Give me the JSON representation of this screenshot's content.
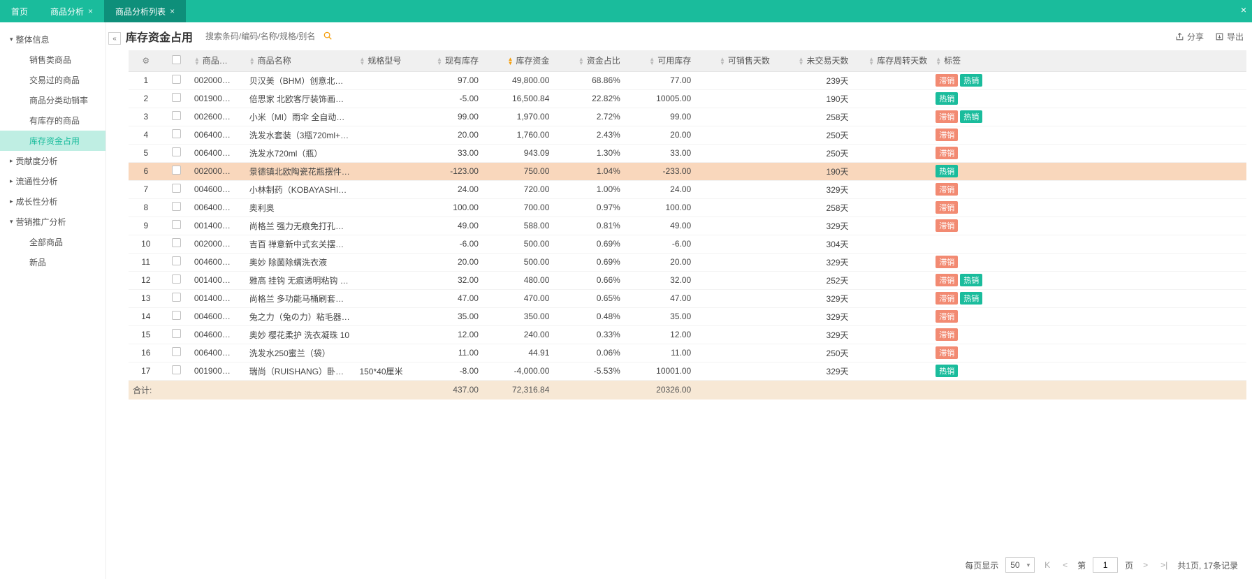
{
  "topbar": {
    "tabs": [
      {
        "label": "首页",
        "closable": false,
        "active": false
      },
      {
        "label": "商品分析",
        "closable": true,
        "active": false
      },
      {
        "label": "商品分析列表",
        "closable": true,
        "active": true
      }
    ]
  },
  "sidebar": {
    "groups": [
      {
        "label": "整体信息",
        "expanded": true,
        "items": [
          {
            "label": "销售类商品"
          },
          {
            "label": "交易过的商品"
          },
          {
            "label": "商品分类动销率"
          },
          {
            "label": "有库存的商品"
          },
          {
            "label": "库存资金占用",
            "active": true
          }
        ]
      },
      {
        "label": "贡献度分析",
        "expanded": false,
        "items": []
      },
      {
        "label": "流通性分析",
        "expanded": false,
        "items": []
      },
      {
        "label": "成长性分析",
        "expanded": false,
        "items": []
      },
      {
        "label": "营销推广分析",
        "expanded": true,
        "items": [
          {
            "label": "全部商品"
          },
          {
            "label": "新品"
          }
        ]
      }
    ]
  },
  "header": {
    "title": "库存资金占用",
    "search_placeholder": "搜索条码/编码/名称/规格/别名",
    "share_label": "分享",
    "export_label": "导出"
  },
  "table": {
    "columns": {
      "code": "商品…",
      "name": "商品名称",
      "spec": "规格型号",
      "stock": "现有库存",
      "fund": "库存资金",
      "pct": "资金占比",
      "avail": "可用库存",
      "saledays": "可销售天数",
      "notxdays": "未交易天数",
      "turndays": "库存周转天数",
      "tags": "标签"
    },
    "tag_labels": {
      "slow": "滞销",
      "hot": "热销"
    },
    "rows": [
      {
        "idx": "1",
        "code": "002000…",
        "name": "贝汉美（BHM）创意北欧…",
        "spec": "",
        "stock": "97.00",
        "fund": "49,800.00",
        "pct": "68.86%",
        "avail": "77.00",
        "saledays": "",
        "notxdays": "239天",
        "turndays": "",
        "tags": [
          "slow",
          "hot"
        ]
      },
      {
        "idx": "2",
        "code": "001900…",
        "name": "倍思家 北欧客厅装饰画卧室",
        "spec": "",
        "stock": "-5.00",
        "fund": "16,500.84",
        "pct": "22.82%",
        "avail": "10005.00",
        "saledays": "",
        "notxdays": "190天",
        "turndays": "",
        "tags": [
          "hot"
        ]
      },
      {
        "idx": "3",
        "code": "002600…",
        "name": "小米（MI）雨伞 全自动折…",
        "spec": "",
        "stock": "99.00",
        "fund": "1,970.00",
        "pct": "2.72%",
        "avail": "99.00",
        "saledays": "",
        "notxdays": "258天",
        "turndays": "",
        "tags": [
          "slow",
          "hot"
        ]
      },
      {
        "idx": "4",
        "code": "006400…",
        "name": "洗发水套装（3瓶720ml+1…",
        "spec": "",
        "stock": "20.00",
        "fund": "1,760.00",
        "pct": "2.43%",
        "avail": "20.00",
        "saledays": "",
        "notxdays": "250天",
        "turndays": "",
        "tags": [
          "slow"
        ]
      },
      {
        "idx": "5",
        "code": "006400…",
        "name": "洗发水720ml（瓶）",
        "spec": "",
        "stock": "33.00",
        "fund": "943.09",
        "pct": "1.30%",
        "avail": "33.00",
        "saledays": "",
        "notxdays": "250天",
        "turndays": "",
        "tags": [
          "slow"
        ]
      },
      {
        "idx": "6",
        "code": "002000…",
        "name": "景德镇北欧陶瓷花瓶摆件 仿…",
        "spec": "",
        "stock": "-123.00",
        "fund": "750.00",
        "pct": "1.04%",
        "avail": "-233.00",
        "saledays": "",
        "notxdays": "190天",
        "turndays": "",
        "tags": [
          "hot"
        ],
        "highlight": true
      },
      {
        "idx": "7",
        "code": "004600…",
        "name": "小林制药（KOBAYASHI）日",
        "spec": "",
        "stock": "24.00",
        "fund": "720.00",
        "pct": "1.00%",
        "avail": "24.00",
        "saledays": "",
        "notxdays": "329天",
        "turndays": "",
        "tags": [
          "slow"
        ]
      },
      {
        "idx": "8",
        "code": "006400…",
        "name": "奥利奥",
        "spec": "",
        "stock": "100.00",
        "fund": "700.00",
        "pct": "0.97%",
        "avail": "100.00",
        "saledays": "",
        "notxdays": "258天",
        "turndays": "",
        "tags": [
          "slow"
        ]
      },
      {
        "idx": "9",
        "code": "001400…",
        "name": "尚格兰 强力无痕免打孔浴室",
        "spec": "",
        "stock": "49.00",
        "fund": "588.00",
        "pct": "0.81%",
        "avail": "49.00",
        "saledays": "",
        "notxdays": "329天",
        "turndays": "",
        "tags": [
          "slow"
        ]
      },
      {
        "idx": "10",
        "code": "002000…",
        "name": "吉百 禅意新中式玄关摆件客",
        "spec": "",
        "stock": "-6.00",
        "fund": "500.00",
        "pct": "0.69%",
        "avail": "-6.00",
        "saledays": "",
        "notxdays": "304天",
        "turndays": "",
        "tags": []
      },
      {
        "idx": "11",
        "code": "004600…",
        "name": "奥妙 除菌除螨洗衣液",
        "spec": "",
        "stock": "20.00",
        "fund": "500.00",
        "pct": "0.69%",
        "avail": "20.00",
        "saledays": "",
        "notxdays": "329天",
        "turndays": "",
        "tags": [
          "slow"
        ]
      },
      {
        "idx": "12",
        "code": "001400…",
        "name": "雅高 挂钩 无痕透明粘钩 强…",
        "spec": "",
        "stock": "32.00",
        "fund": "480.00",
        "pct": "0.66%",
        "avail": "32.00",
        "saledays": "",
        "notxdays": "252天",
        "turndays": "",
        "tags": [
          "slow",
          "hot"
        ]
      },
      {
        "idx": "13",
        "code": "001400…",
        "name": "尚格兰 多功能马桶刷套装 带",
        "spec": "",
        "stock": "47.00",
        "fund": "470.00",
        "pct": "0.65%",
        "avail": "47.00",
        "saledays": "",
        "notxdays": "329天",
        "turndays": "",
        "tags": [
          "slow",
          "hot"
        ]
      },
      {
        "idx": "14",
        "code": "004600…",
        "name": "兔之力（兔の力）粘毛器粘…",
        "spec": "",
        "stock": "35.00",
        "fund": "350.00",
        "pct": "0.48%",
        "avail": "35.00",
        "saledays": "",
        "notxdays": "329天",
        "turndays": "",
        "tags": [
          "slow"
        ]
      },
      {
        "idx": "15",
        "code": "004600…",
        "name": "奥妙 樱花柔护 洗衣凝珠 10",
        "spec": "",
        "stock": "12.00",
        "fund": "240.00",
        "pct": "0.33%",
        "avail": "12.00",
        "saledays": "",
        "notxdays": "329天",
        "turndays": "",
        "tags": [
          "slow"
        ]
      },
      {
        "idx": "16",
        "code": "006400…",
        "name": "洗发水250蜜兰（袋）",
        "spec": "",
        "stock": "11.00",
        "fund": "44.91",
        "pct": "0.06%",
        "avail": "11.00",
        "saledays": "",
        "notxdays": "250天",
        "turndays": "",
        "tags": [
          "slow"
        ]
      },
      {
        "idx": "17",
        "code": "001900…",
        "name": "瑞尚（RUISHANG）卧室…",
        "spec": "150*40厘米",
        "stock": "-8.00",
        "fund": "-4,000.00",
        "pct": "-5.53%",
        "avail": "10001.00",
        "saledays": "",
        "notxdays": "329天",
        "turndays": "",
        "tags": [
          "hot"
        ]
      }
    ],
    "footer": {
      "label": "合计:",
      "stock": "437.00",
      "fund": "72,316.84",
      "avail": "20326.00"
    }
  },
  "pagination": {
    "per_page_label": "每页显示",
    "per_page_value": "50",
    "page_label_prefix": "第",
    "page_value": "1",
    "page_label_suffix": "页",
    "summary": "共1页, 17条记录"
  }
}
